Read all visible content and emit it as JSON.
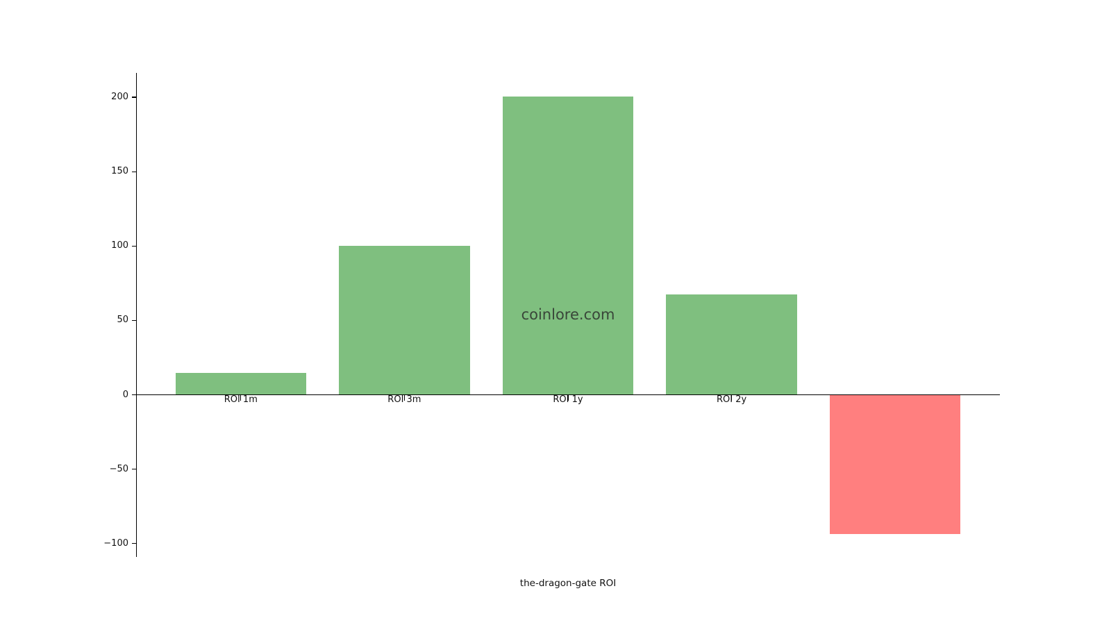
{
  "page": {
    "background_color": "#ffffff"
  },
  "watermark": {
    "text": "coinlore.com",
    "color": "rgba(40,40,40,0.8)"
  },
  "chart_data": {
    "type": "bar",
    "title": "the-dragon-gate ROI",
    "title_position": "bottom",
    "categories": [
      "ROI 1m",
      "ROI 3m",
      "ROI 1y",
      "ROI 2y",
      ""
    ],
    "values": [
      14.5,
      100,
      200.5,
      67.3,
      -93.5
    ],
    "positive_color": "#7fbf7f",
    "negative_color": "#ff7f7f",
    "axis_color": "#000000",
    "tick_label_color": "#111111",
    "y_ticks": [
      200,
      150,
      100,
      50,
      0,
      -50,
      -100
    ],
    "y_tick_labels": [
      "200",
      "150",
      "100",
      "50",
      "0",
      "−50",
      "−100"
    ],
    "ylim": [
      -109,
      216.4
    ],
    "xlabel": "",
    "ylabel": "",
    "grid": false,
    "legend": null,
    "baseline": 0,
    "watermark": "coinlore.com"
  }
}
